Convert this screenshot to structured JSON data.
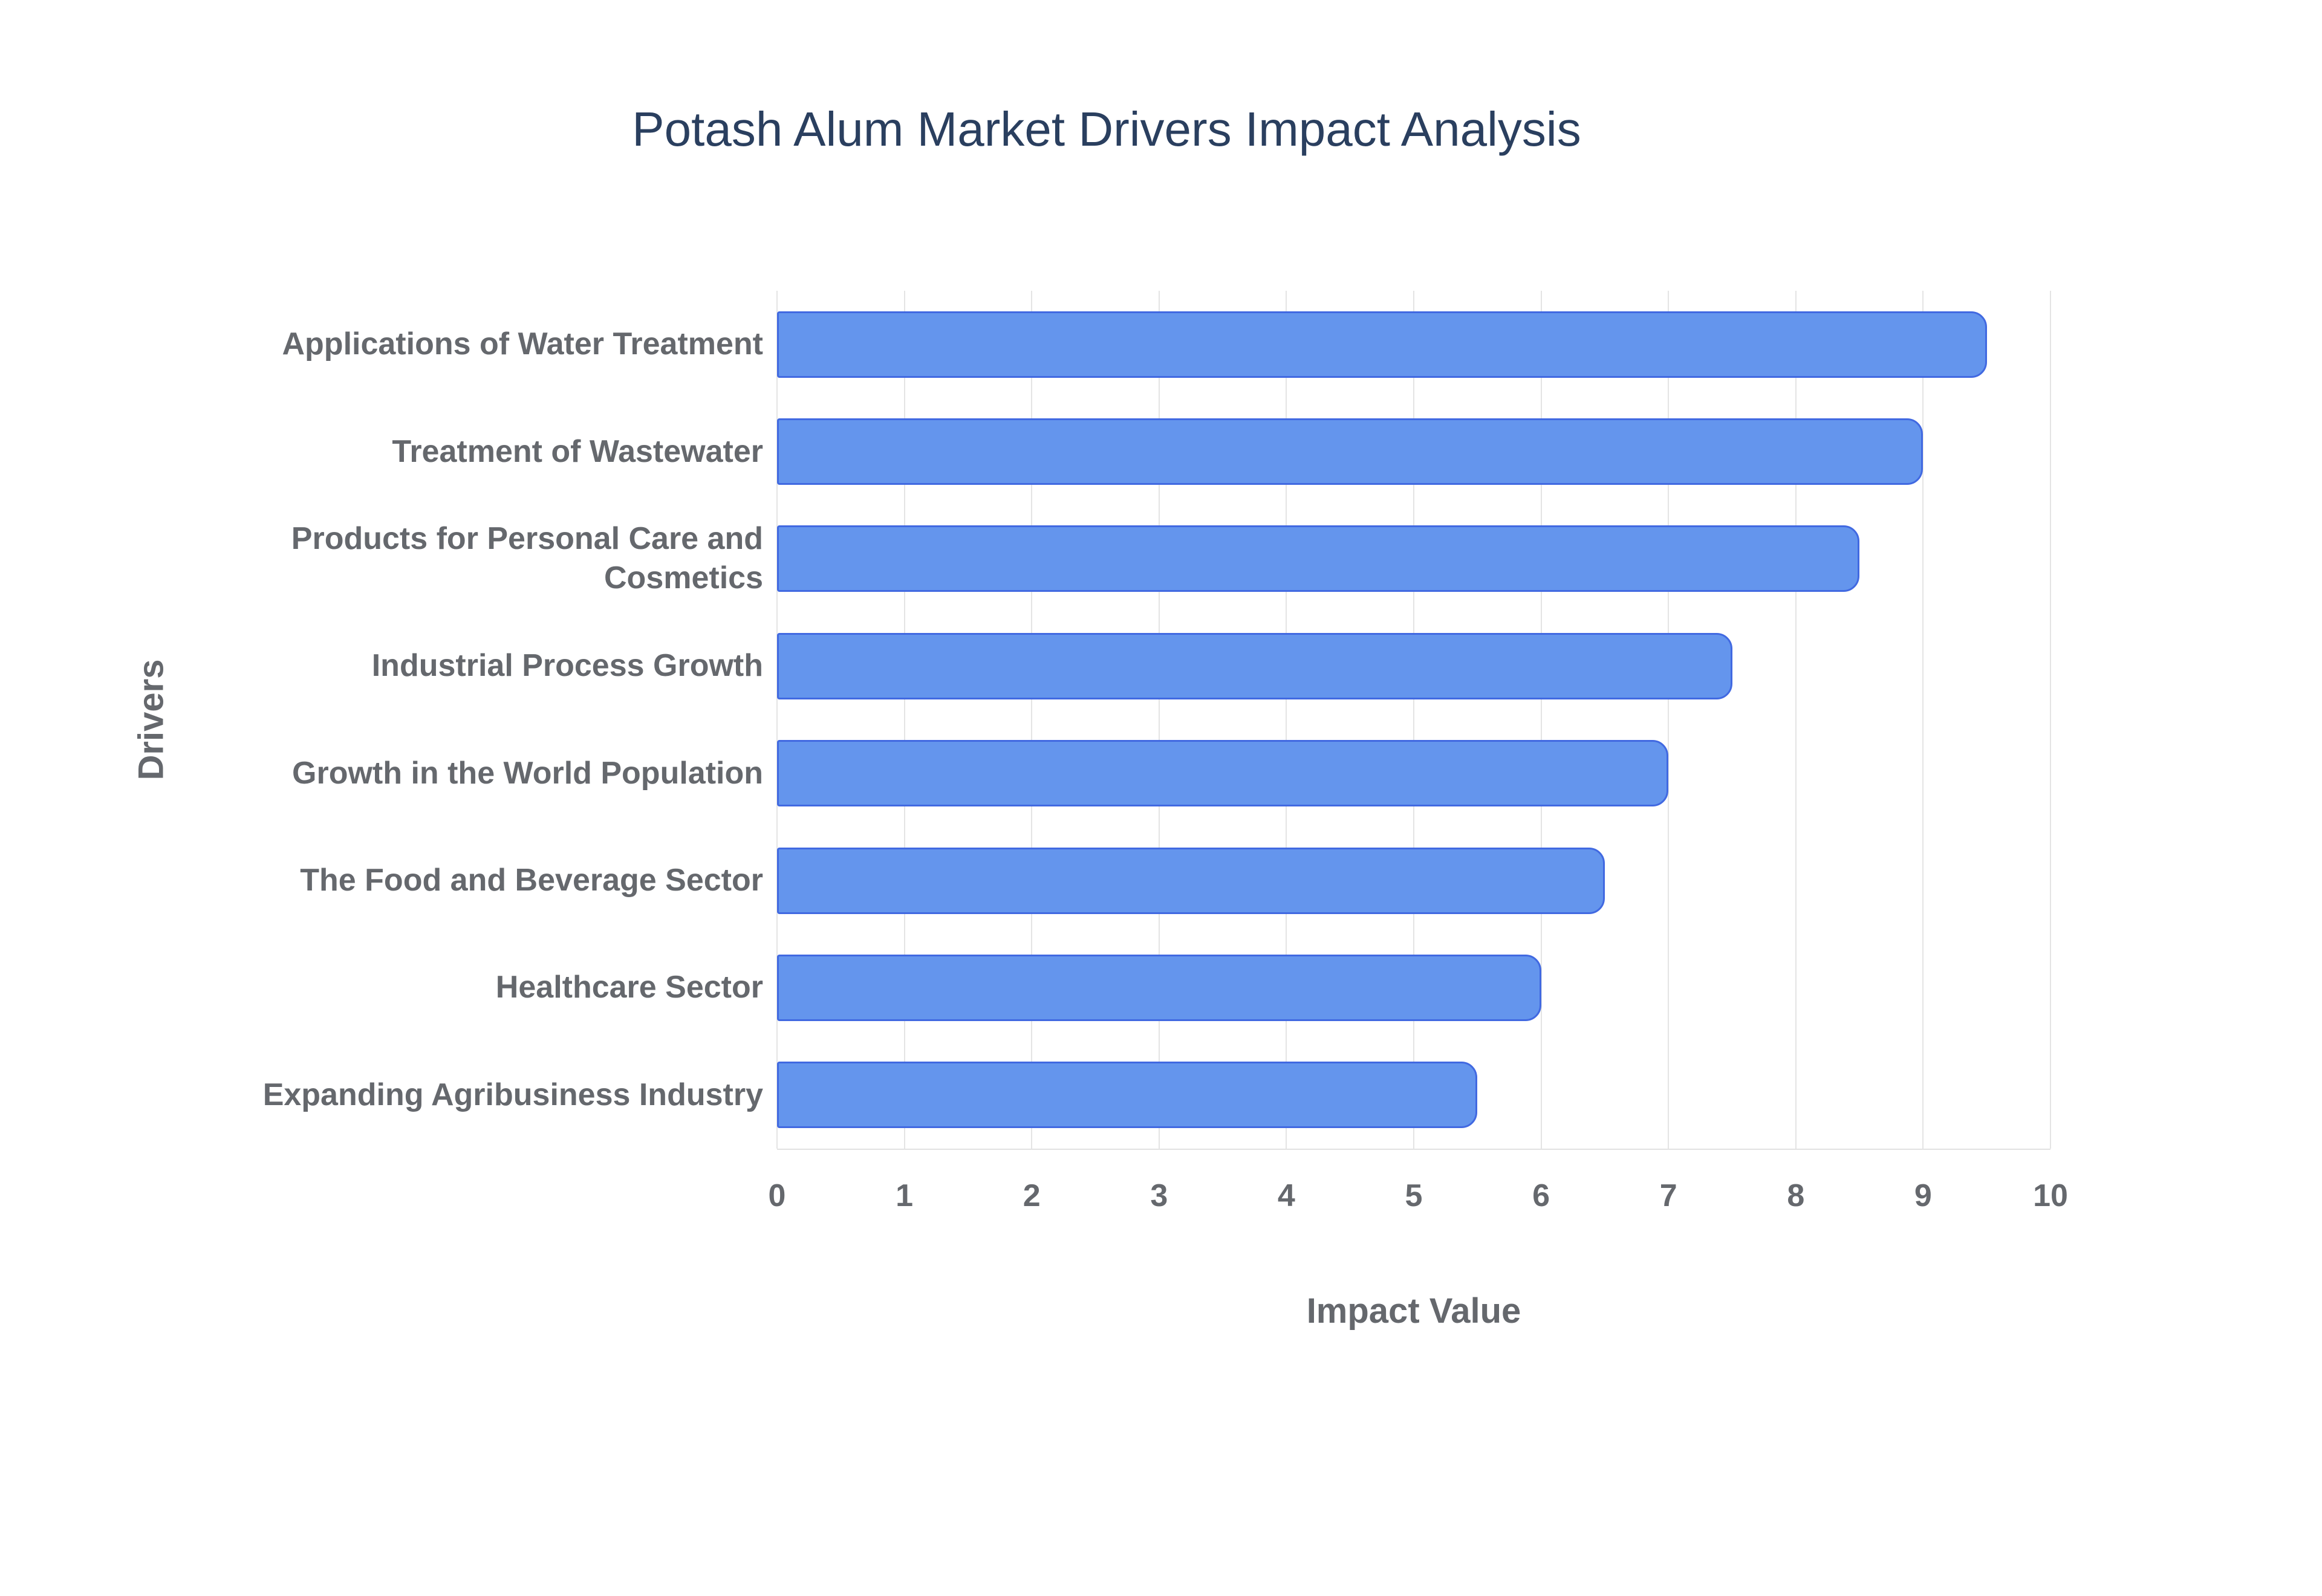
{
  "chart_data": {
    "type": "bar",
    "orientation": "horizontal",
    "title": "Potash Alum Market Drivers Impact Analysis",
    "xlabel": "Impact Value",
    "ylabel": "Drivers",
    "categories": [
      "Applications of Water Treatment",
      "Treatment of Wastewater",
      "Products for Personal Care and Cosmetics",
      "Industrial Process Growth",
      "Growth in the World Population",
      "The Food and Beverage Sector",
      "Healthcare Sector",
      "Expanding Agribusiness Industry"
    ],
    "values": [
      9.5,
      9,
      8.5,
      7.5,
      7,
      6.5,
      6,
      5.5
    ],
    "xlim": [
      0,
      10
    ],
    "x_ticks": [
      0,
      1,
      2,
      3,
      4,
      5,
      6,
      7,
      8,
      9,
      10
    ],
    "grid": "vertical-only",
    "legend": "none",
    "colors": {
      "bar_fill": "#6495ED",
      "bar_border": "#4169E1",
      "title_text": "#2a3f5f",
      "axis_text": "#65686d",
      "gridline": "#e4e4e4",
      "background": "#ffffff"
    }
  }
}
